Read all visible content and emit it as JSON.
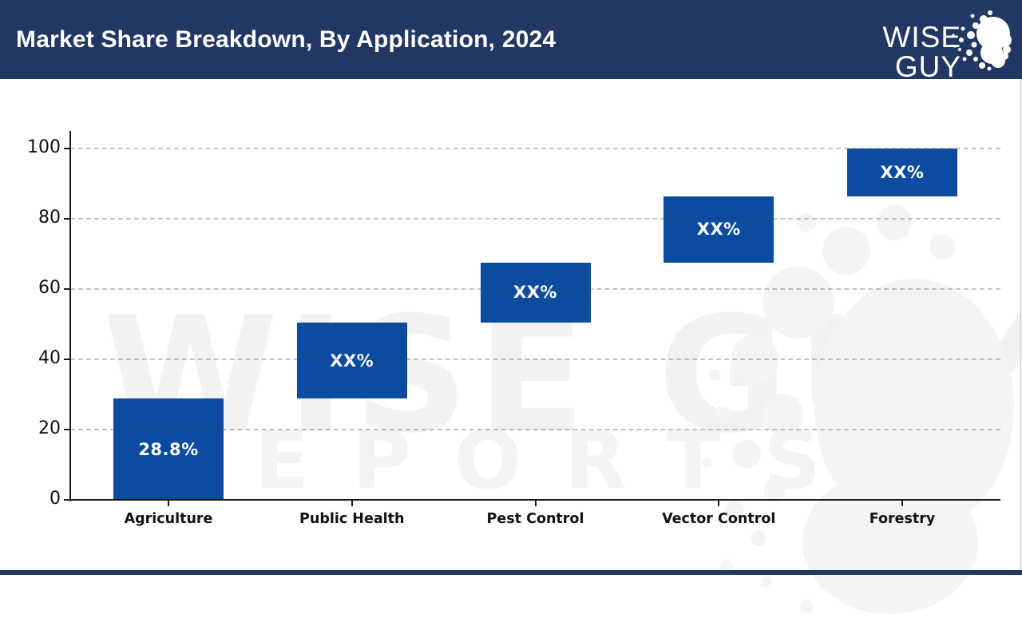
{
  "header": {
    "title": "Market Share Breakdown, By Application, 2024",
    "logo": {
      "line1": "WISE GUY",
      "line2": "REPORTS"
    }
  },
  "watermark": {
    "line1": "WISE GUY",
    "line2": "REPORTS"
  },
  "colors": {
    "header_bg": "#223862",
    "footer_bg": "#223862",
    "bar": "#0B4CA0",
    "bar_label_text": "#ffffff",
    "axis": "#1a1a1a",
    "gridline": "#c9c9c9",
    "watermark": "#f2f2f2",
    "title_text": "#ffffff"
  },
  "chart_data": {
    "type": "bar",
    "subtype": "waterfall",
    "title": "Market Share Breakdown, By Application, 2024",
    "categories": [
      "Agriculture",
      "Public Health",
      "Pest Control",
      "Vector Control",
      "Forestry"
    ],
    "segments": [
      {
        "start": 0,
        "end": 28.8
      },
      {
        "start": 28.8,
        "end": 50.5
      },
      {
        "start": 50.5,
        "end": 67.6
      },
      {
        "start": 67.6,
        "end": 86.4
      },
      {
        "start": 86.4,
        "end": 100
      }
    ],
    "bar_labels": [
      "28.8%",
      "XX%",
      "XX%",
      "XX%",
      "XX%"
    ],
    "xlabel": "",
    "ylabel": "",
    "ylim": [
      0,
      100
    ],
    "yticks": [
      0,
      20,
      40,
      60,
      80,
      100
    ],
    "grid": "horizontal dashed",
    "legend": "none"
  }
}
